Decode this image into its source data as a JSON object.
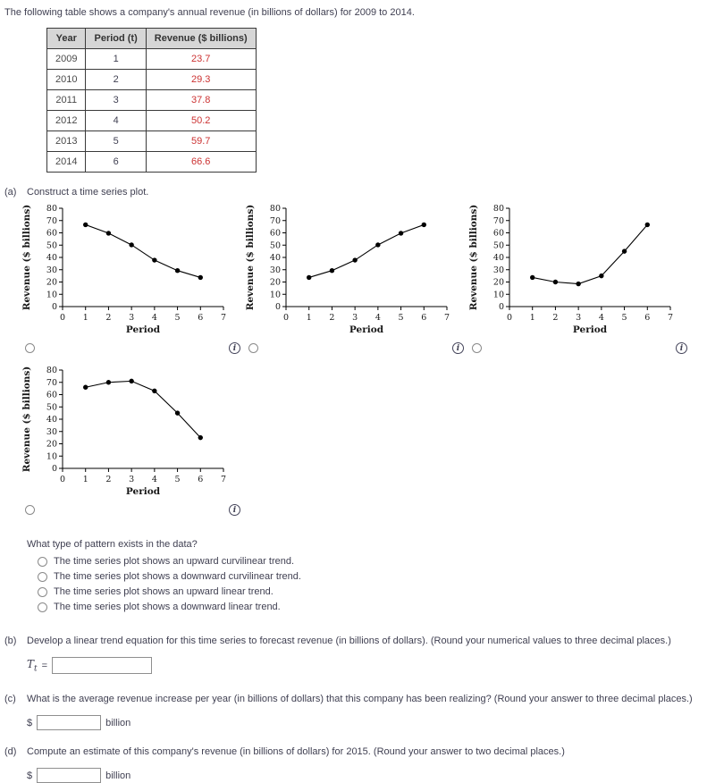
{
  "intro": "The following table shows a company's annual revenue (in billions of dollars) for 2009 to 2014.",
  "table": {
    "headers": [
      "Year",
      "Period (t)",
      "Revenue ($ billions)"
    ],
    "rows": [
      {
        "year": "2009",
        "period": "1",
        "revenue": "23.7"
      },
      {
        "year": "2010",
        "period": "2",
        "revenue": "29.3"
      },
      {
        "year": "2011",
        "period": "3",
        "revenue": "37.8"
      },
      {
        "year": "2012",
        "period": "4",
        "revenue": "50.2"
      },
      {
        "year": "2013",
        "period": "5",
        "revenue": "59.7"
      },
      {
        "year": "2014",
        "period": "6",
        "revenue": "66.6"
      }
    ]
  },
  "part_a": {
    "label": "(a)",
    "prompt": "Construct a time series plot.",
    "question": "What type of pattern exists in the data?",
    "options": [
      "The time series plot shows an upward curvilinear trend.",
      "The time series plot shows a downward curvilinear trend.",
      "The time series plot shows an upward linear trend.",
      "The time series plot shows a downward linear trend."
    ]
  },
  "chart_data": [
    {
      "type": "line",
      "name": "plot-option-1",
      "x": [
        1,
        2,
        3,
        4,
        5,
        6
      ],
      "y": [
        66.6,
        59.7,
        50.2,
        37.8,
        29.3,
        23.7
      ],
      "xlabel": "Period",
      "ylabel": "Revenue ($ billions)",
      "xlim": [
        0,
        7
      ],
      "ylim": [
        0,
        80
      ],
      "xtick_step": 1,
      "ytick_step": 10
    },
    {
      "type": "line",
      "name": "plot-option-2",
      "x": [
        1,
        2,
        3,
        4,
        5,
        6
      ],
      "y": [
        23.7,
        29.3,
        37.8,
        50.2,
        59.7,
        66.6
      ],
      "xlabel": "Period",
      "ylabel": "Revenue ($ billions)",
      "xlim": [
        0,
        7
      ],
      "ylim": [
        0,
        80
      ],
      "xtick_step": 1,
      "ytick_step": 10
    },
    {
      "type": "line",
      "name": "plot-option-3",
      "x": [
        1,
        2,
        3,
        4,
        5,
        6
      ],
      "y": [
        23.7,
        20,
        18.5,
        25,
        45,
        66.6
      ],
      "xlabel": "Period",
      "ylabel": "Revenue ($ billions)",
      "xlim": [
        0,
        7
      ],
      "ylim": [
        0,
        80
      ],
      "xtick_step": 1,
      "ytick_step": 10
    },
    {
      "type": "line",
      "name": "plot-option-4",
      "x": [
        1,
        2,
        3,
        4,
        5,
        6
      ],
      "y": [
        66,
        70,
        71,
        63,
        45,
        25
      ],
      "xlabel": "Period",
      "ylabel": "Revenue ($ billions)",
      "xlim": [
        0,
        7
      ],
      "ylim": [
        0,
        80
      ],
      "xtick_step": 1,
      "ytick_step": 10
    }
  ],
  "part_b": {
    "label": "(b)",
    "prompt": "Develop a linear trend equation for this time series to forecast revenue (in billions of dollars). (Round your numerical values to three decimal places.)",
    "equation_var": "T",
    "equation_sub": "t",
    "equals": "="
  },
  "part_c": {
    "label": "(c)",
    "prompt": "What is the average revenue increase per year (in billions of dollars) that this company has been realizing? (Round your answer to three decimal places.)",
    "currency": "$",
    "unit": "billion"
  },
  "part_d": {
    "label": "(d)",
    "prompt": "Compute an estimate of this company's revenue (in billions of dollars) for 2015. (Round your answer to two decimal places.)",
    "currency": "$",
    "unit": "billion"
  },
  "icons": {
    "info": "i"
  }
}
